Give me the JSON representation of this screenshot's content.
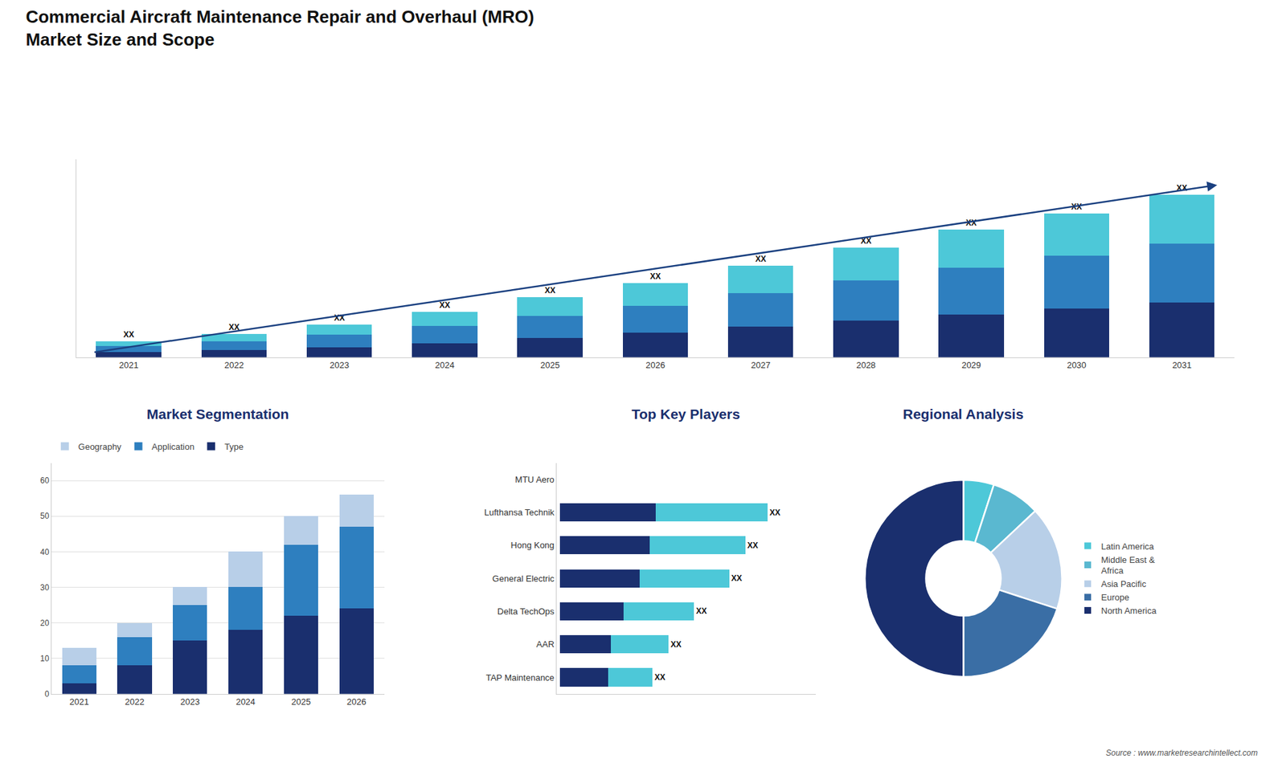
{
  "title": "Commercial Aircraft Maintenance Repair and Overhaul (MRO)\nMarket Size and Scope",
  "annotations": [
    "Source : www.marketresearchintellect.com"
  ],
  "chart_data": [
    {
      "type": "bar",
      "stacked": true,
      "categories": [
        "2021",
        "2022",
        "2023",
        "2024",
        "2025",
        "2026",
        "2027",
        "2028",
        "2029",
        "2030",
        "2031"
      ],
      "series": [
        {
          "color": "#1a2f6e",
          "values": [
            2.5,
            3.5,
            5,
            7,
            9.5,
            12,
            15,
            18,
            21,
            24,
            27
          ]
        },
        {
          "color": "#2e7fbf",
          "values": [
            3,
            4.5,
            6,
            8.5,
            11,
            13.5,
            16.5,
            20,
            23,
            26,
            29
          ]
        },
        {
          "color": "#4dc8d8",
          "values": [
            2.5,
            3.5,
            5,
            7,
            9,
            11,
            13.5,
            16,
            19,
            21,
            24
          ]
        }
      ],
      "annotations": [
        "XX",
        "XX",
        "XX",
        "XX",
        "XX",
        "XX",
        "XX",
        "XX",
        "XX",
        "XX",
        "XX"
      ],
      "ylim": [
        0,
        97.6
      ],
      "tick_labels": "x",
      "grid": false
    },
    {
      "type": "bar",
      "title": "Market Segmentation",
      "stacked": true,
      "categories": [
        "2021",
        "2022",
        "2023",
        "2024",
        "2025",
        "2026"
      ],
      "series": [
        {
          "name": "Type",
          "color": "#1a2f6e",
          "values": [
            3,
            8,
            15,
            18,
            22,
            24
          ]
        },
        {
          "name": "Application",
          "color": "#2e7fbf",
          "values": [
            5,
            8,
            10,
            12,
            20,
            23
          ]
        },
        {
          "name": "Geography",
          "color": "#b8cfe8",
          "values": [
            5,
            4,
            5,
            10,
            8,
            9
          ]
        }
      ],
      "ylim": [
        0,
        65
      ],
      "yticks": [
        0,
        10,
        20,
        30,
        40,
        50,
        60
      ],
      "grid": true,
      "legend": "top"
    },
    {
      "type": "bar",
      "title": "Top Key Players",
      "orientation": "horizontal",
      "stacked": true,
      "categories": [
        "MTU Aero",
        "Lufthansa Technik",
        "Hong Kong",
        "General Electric",
        "Delta TechOps",
        "AAR",
        "TAP Maintenance"
      ],
      "series": [
        {
          "color": "#1a2f6e",
          "values": [
            0,
            30,
            28,
            25,
            20,
            16,
            15
          ]
        },
        {
          "color": "#4dc8d8",
          "values": [
            0,
            35,
            30,
            28,
            22,
            18,
            14
          ]
        }
      ],
      "annotations": [
        null,
        "XX",
        "XX",
        "XX",
        "XX",
        "XX",
        "XX"
      ],
      "xlim": [
        -1,
        80
      ],
      "tick_labels": "y",
      "grid": false
    },
    {
      "type": "donut",
      "title": "Regional Analysis",
      "categories": [
        "Latin America",
        "Middle East &\nAfrica",
        "Asia Pacific",
        "Europe",
        "North America"
      ],
      "values": [
        5,
        8,
        17,
        20,
        50
      ],
      "colors": [
        "#4dc8d8",
        "#5ab8d0",
        "#b8cfe8",
        "#3a6ea5",
        "#1a2f6e"
      ],
      "legend": "right"
    }
  ]
}
